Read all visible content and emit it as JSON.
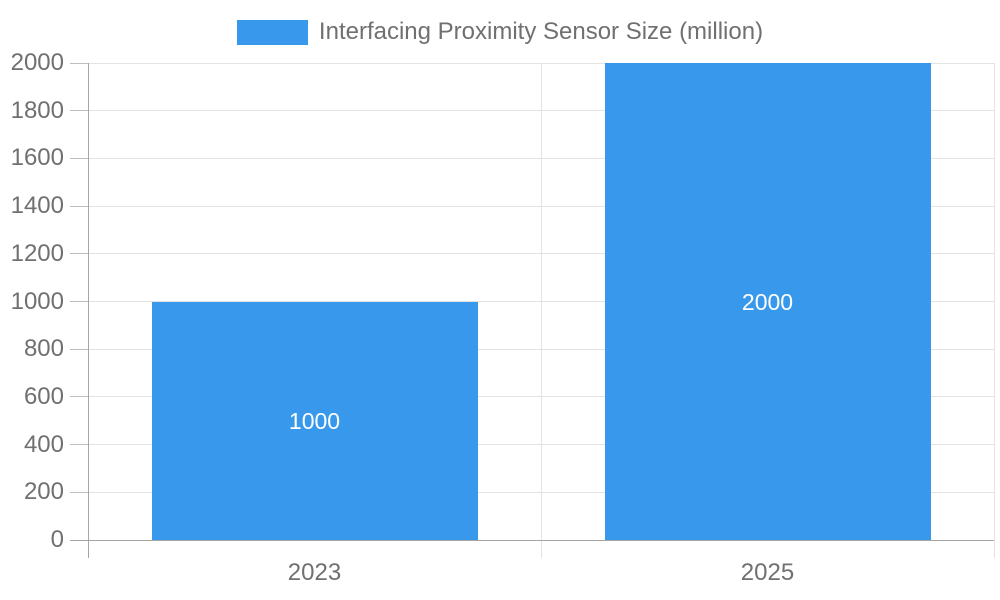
{
  "legend": {
    "label": "Interfacing Proximity Sensor Size (million)"
  },
  "colors": {
    "bar": "#3899ec",
    "text": "#707070",
    "grid": "#e3e3e3",
    "axis": "#a6a6a6",
    "tick": "#bdbdbd",
    "value_label": "#ffffff",
    "background": "#ffffff"
  },
  "chart_data": {
    "type": "bar",
    "title": "",
    "categories": [
      "2023",
      "2025"
    ],
    "series": [
      {
        "name": "Interfacing Proximity Sensor Size (million)",
        "values": [
          1000,
          2000
        ],
        "value_labels": [
          "1000",
          "2000"
        ]
      }
    ],
    "xlabel": "",
    "ylabel": "",
    "ylim": [
      0,
      2000
    ],
    "ytick_step": 200,
    "ytick_labels": [
      "0",
      "200",
      "400",
      "600",
      "800",
      "1000",
      "1200",
      "1400",
      "1600",
      "1800",
      "2000"
    ],
    "grid": true,
    "legend_position": "top",
    "value_label_position": "inside-center",
    "value_label_color": "#ffffff"
  }
}
